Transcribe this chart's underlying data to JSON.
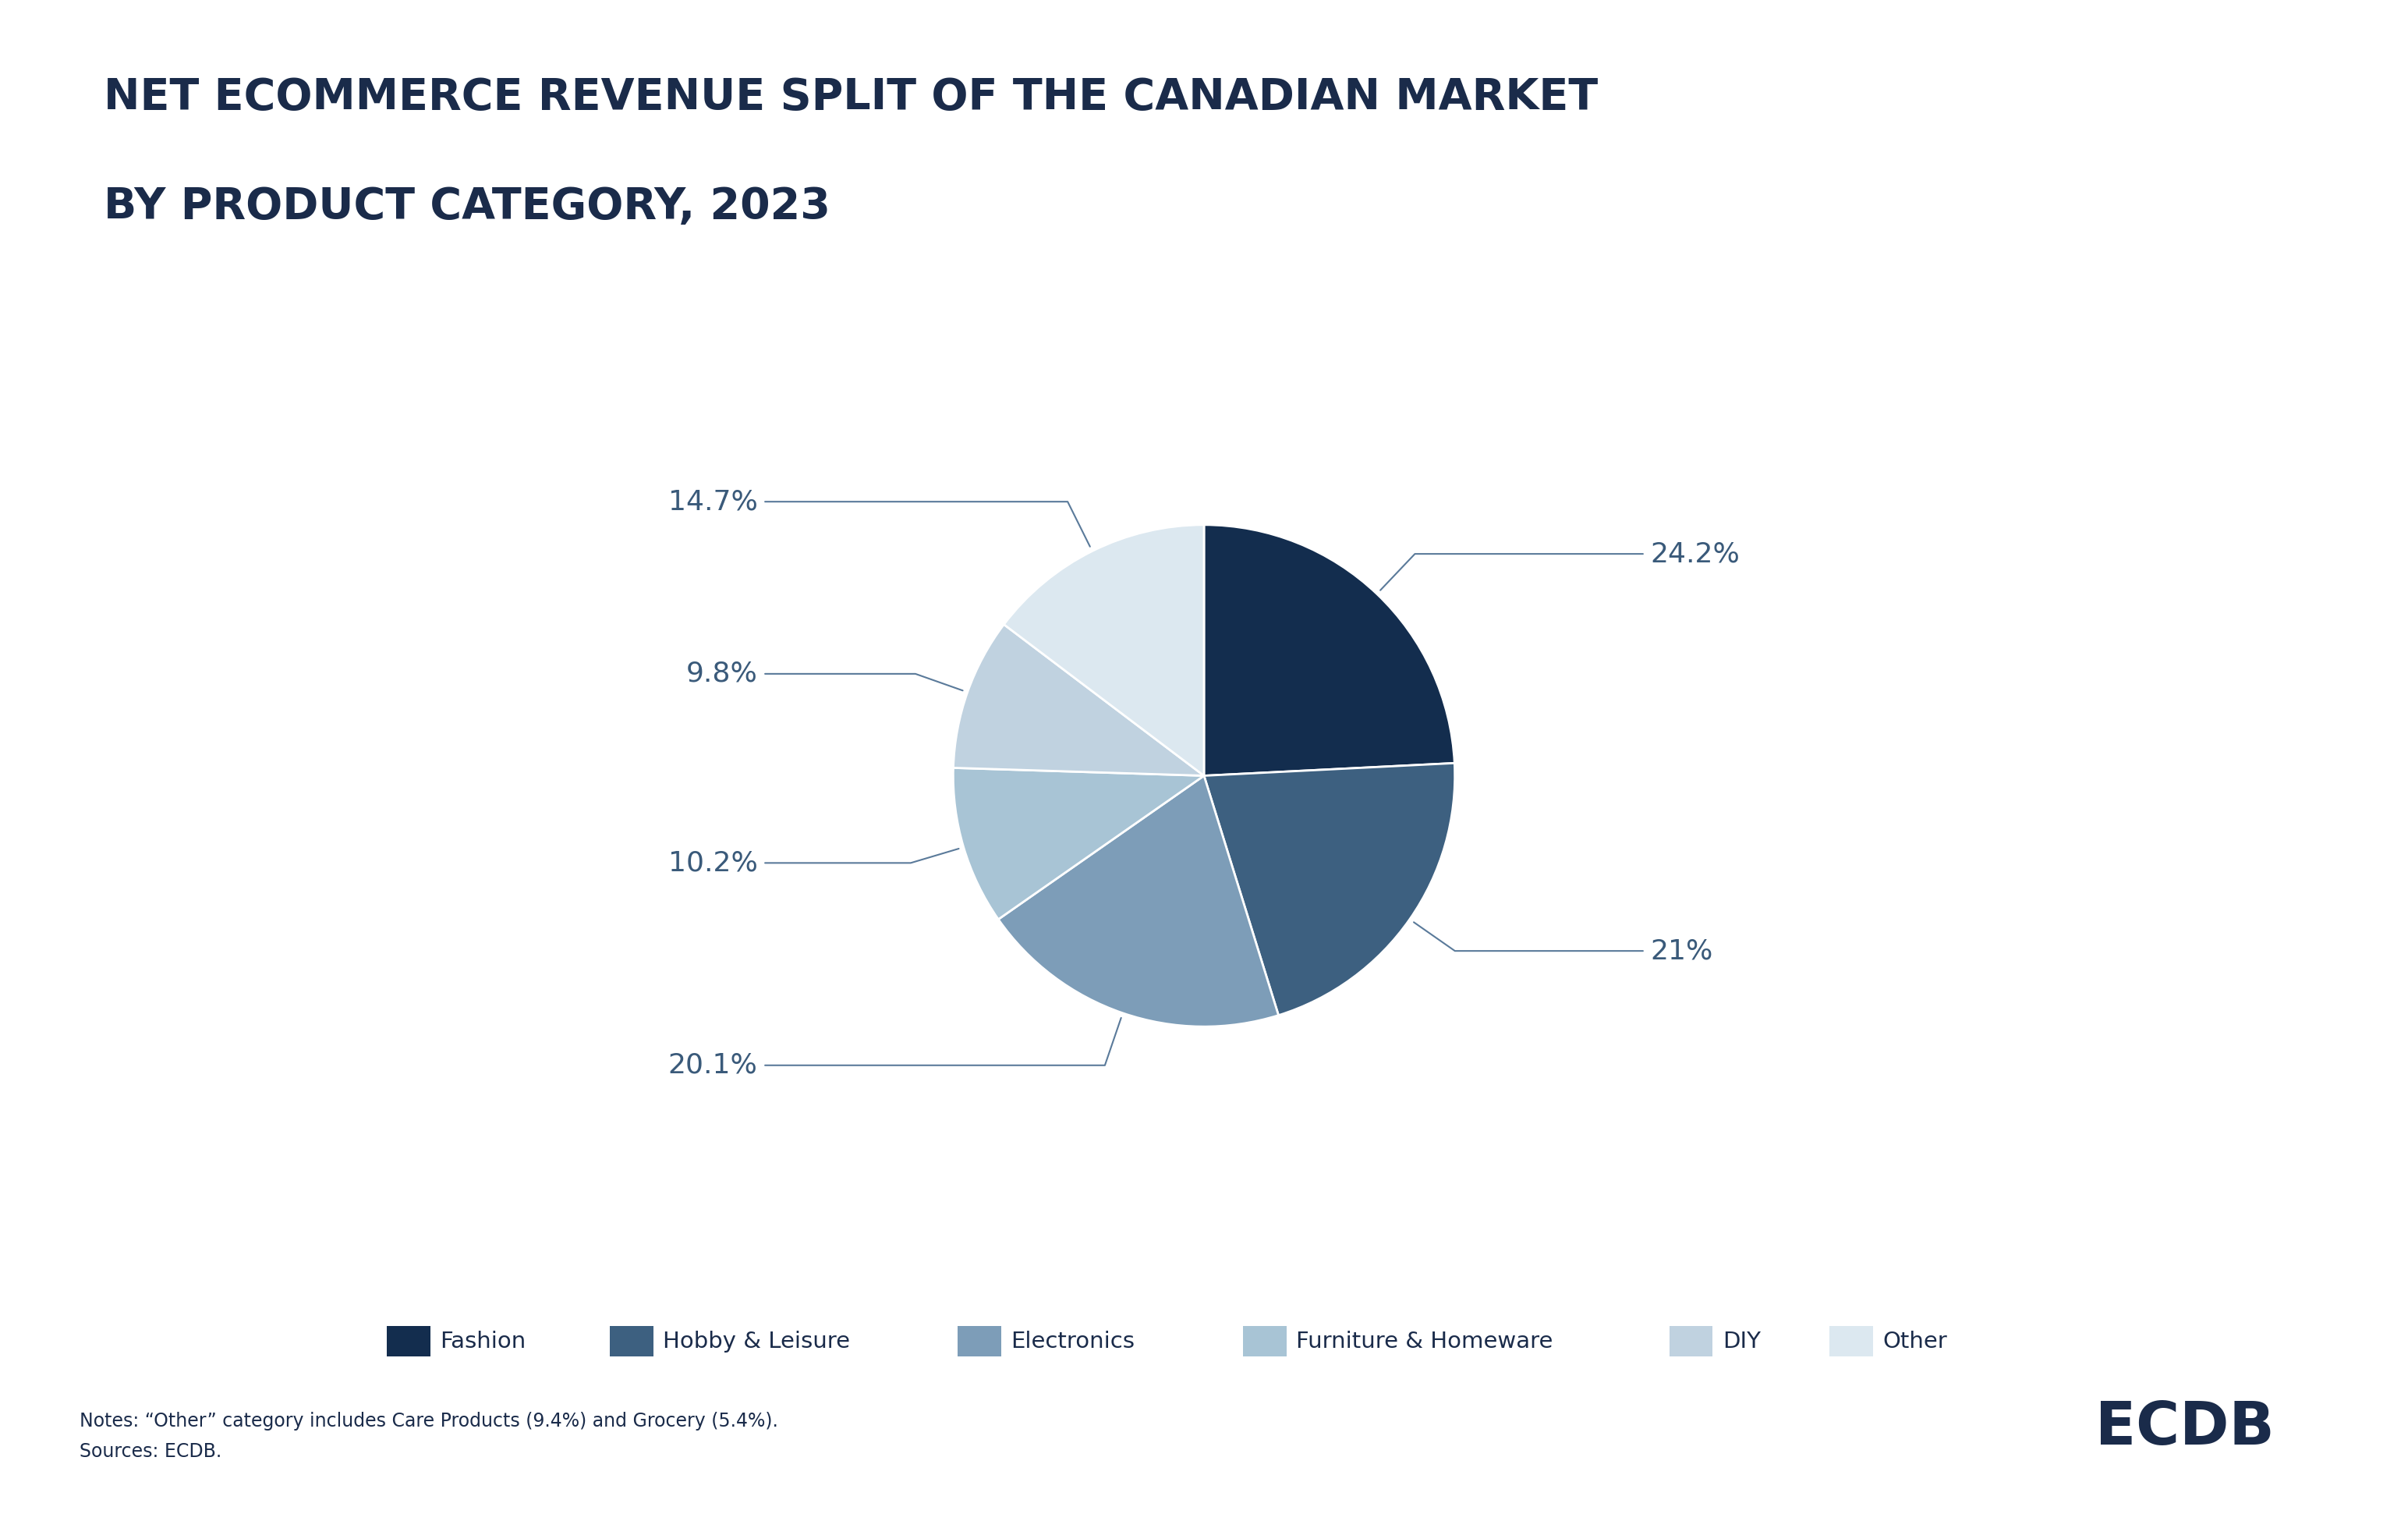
{
  "title_line1": "NET ECOMMERCE REVENUE SPLIT OF THE CANADIAN MARKET",
  "title_line2": "BY PRODUCT CATEGORY, 2023",
  "title_color": "#1a2b4a",
  "title_bar_color": "#1a2b4a",
  "background_color": "#ffffff",
  "categories": [
    "Fashion",
    "Hobby & Leisure",
    "Electronics",
    "Furniture & Homeware",
    "DIY",
    "Other"
  ],
  "values": [
    24.2,
    21.0,
    20.1,
    10.2,
    9.8,
    14.7
  ],
  "colors": [
    "#132d4e",
    "#3d6080",
    "#7d9db8",
    "#a8c4d5",
    "#c0d2e0",
    "#dce8f0"
  ],
  "labels": [
    "24.2%",
    "21%",
    "20.1%",
    "10.2%",
    "9.8%",
    "14.7%"
  ],
  "notes_line1": "Notes: “Other” category includes Care Products (9.4%) and Grocery (5.4%).",
  "notes_line2": "Sources: ECDB.",
  "notes_color": "#1a2b4a",
  "ecdb_color": "#1a2b4a",
  "ecdb_bar_color": "#5bbfaa",
  "legend_colors": [
    "#132d4e",
    "#3d6080",
    "#7d9db8",
    "#a8c4d5",
    "#c0d2e0",
    "#dce8f0"
  ],
  "legend_labels": [
    "Fashion",
    "Hobby & Leisure",
    "Electronics",
    "Furniture & Homeware",
    "DIY",
    "Other"
  ]
}
